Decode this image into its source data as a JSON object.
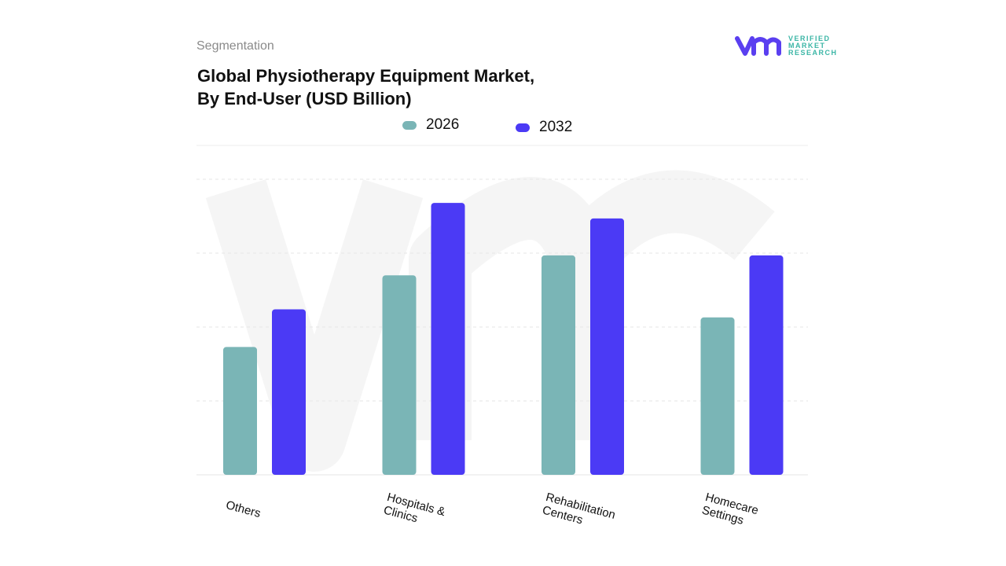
{
  "header": {
    "section": "Segmentation",
    "title_line1": "Global Physiotherapy Equipment Market,",
    "title_line2": "By End-User (USD Billion)"
  },
  "logo": {
    "mark": "vmr",
    "line1": "VERIFIED",
    "line2": "MARKET",
    "line3": "RESEARCH"
  },
  "chart_data": {
    "type": "bar",
    "title": "Global Physiotherapy Equipment Market, By End-User (USD Billion)",
    "categories": [
      "Others",
      "Hospitals & Clinics",
      "Rehabilitation Centers",
      "Homecare Settings"
    ],
    "series": [
      {
        "name": "2026",
        "color": "#7ab5b6",
        "values": [
          1.73,
          2.7,
          2.97,
          2.13
        ]
      },
      {
        "name": "2032",
        "color": "#4b3af5",
        "values": [
          2.24,
          3.68,
          3.47,
          2.97
        ]
      }
    ],
    "ylim": [
      0,
      4
    ],
    "grid": true,
    "legend": "top",
    "y_tick_labels_shown": false
  }
}
